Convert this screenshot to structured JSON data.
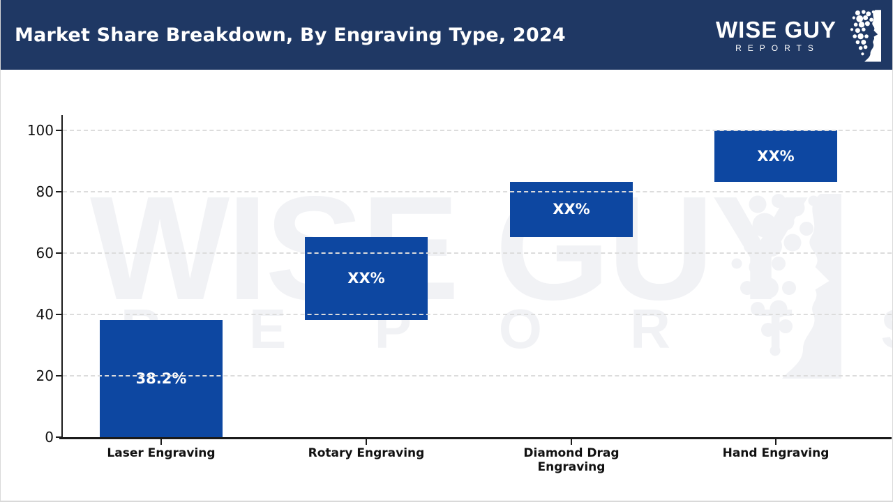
{
  "header": {
    "title": "Market Share Breakdown, By Engraving Type, 2024",
    "bg_color": "#1f3864",
    "logo": {
      "line1": "WISE GUY",
      "line2": "REPORTS"
    }
  },
  "watermark": {
    "line1": "WISE GUY",
    "line2": "R E P O R T S"
  },
  "chart_data": {
    "type": "bar",
    "subtype": "waterfall",
    "title": "Market Share Breakdown, By Engraving Type, 2024",
    "categories": [
      "Laser Engraving",
      "Rotary Engraving",
      "Diamond Drag Engraving",
      "Hand Engraving"
    ],
    "segments": [
      {
        "category": "Laser Engraving",
        "start": 0,
        "end": 38.2,
        "label": "38.2%"
      },
      {
        "category": "Rotary Engraving",
        "start": 38.2,
        "end": 65.2,
        "label": "XX%"
      },
      {
        "category": "Diamond Drag Engraving",
        "start": 65.2,
        "end": 83.2,
        "label": "XX%"
      },
      {
        "category": "Hand Engraving",
        "start": 83.2,
        "end": 100,
        "label": "XX%"
      }
    ],
    "xlabel": "",
    "ylabel": "",
    "ylim": [
      0,
      100
    ],
    "yticks": [
      0,
      20,
      40,
      60,
      80,
      100
    ],
    "grid": "horizontal dashed",
    "legend": "none",
    "bar_color": "#0d47a1",
    "label_color": "#ffffff",
    "axis_color": "#1a1a1a"
  }
}
